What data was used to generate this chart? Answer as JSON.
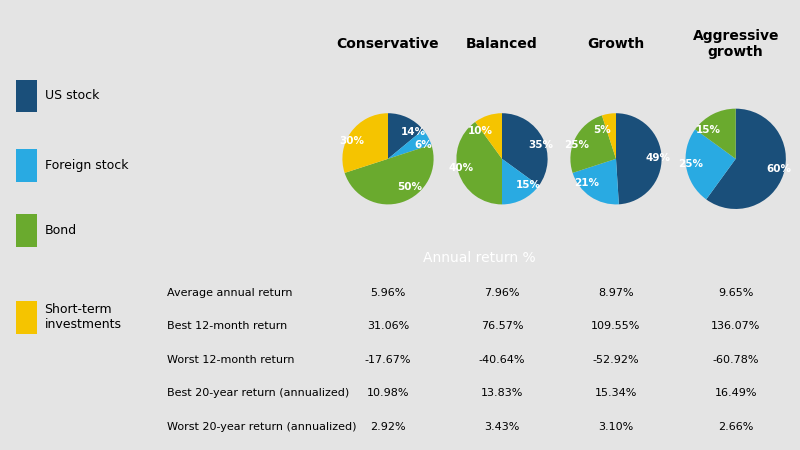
{
  "columns": [
    "Conservative",
    "Balanced",
    "Growth",
    "Aggressive\ngrowth"
  ],
  "pie_data": {
    "Conservative": [
      14,
      6,
      50,
      30
    ],
    "Balanced": [
      35,
      15,
      40,
      10
    ],
    "Growth": [
      49,
      21,
      25,
      5
    ],
    "Aggressive\ngrowth": [
      60,
      25,
      15,
      0
    ]
  },
  "pie_colors": [
    "#1a4f7a",
    "#29aae2",
    "#6aaa2e",
    "#f5c400"
  ],
  "pie_labels": {
    "Conservative": [
      "14%",
      "6%",
      "50%",
      "30%"
    ],
    "Balanced": [
      "35%",
      "15%",
      "40%",
      "10%"
    ],
    "Growth": [
      "49%",
      "21%",
      "25%",
      "5%"
    ],
    "Aggressive\ngrowth": [
      "60%",
      "25%",
      "15%",
      ""
    ]
  },
  "legend_labels": [
    "US stock",
    "Foreign stock",
    "Bond",
    "Short-term\ninvestments"
  ],
  "annual_header": "Annual return %",
  "row_labels": [
    "Average annual return",
    "Best 12-month return",
    "Worst 12-month return",
    "Best 20-year return (annualized)",
    "Worst 20-year return (annualized)"
  ],
  "table_data": [
    [
      "5.96%",
      "7.96%",
      "8.97%",
      "9.65%"
    ],
    [
      "31.06%",
      "76.57%",
      "109.55%",
      "136.07%"
    ],
    [
      "-17.67%",
      "-40.64%",
      "-52.92%",
      "-60.78%"
    ],
    [
      "10.98%",
      "13.83%",
      "15.34%",
      "16.49%"
    ],
    [
      "2.92%",
      "3.43%",
      "3.10%",
      "2.66%"
    ]
  ],
  "bg_color": "#e4e4e4",
  "header_bg": "#707070",
  "header_text_color": "#ffffff",
  "col_header_bg": "#d0d0d0",
  "pie_row_bg": "#d8d8d8",
  "row_colors": [
    "#f0f0f0",
    "#e4e4e4"
  ],
  "divider_color": "#c0c0c0",
  "col_header_fontsize": 10,
  "pie_label_fontsize": 7.5,
  "table_fontsize": 8,
  "legend_fontsize": 9
}
